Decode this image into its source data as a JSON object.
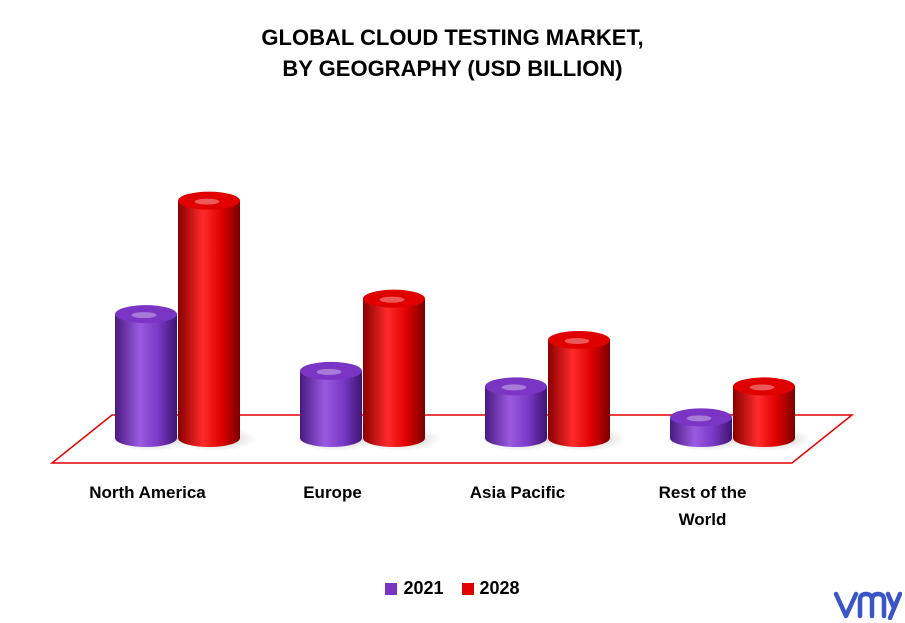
{
  "chart_data": {
    "type": "bar",
    "title_lines": [
      "GLOBAL CLOUD TESTING MARKET,",
      "BY GEOGRAPHY (USD BILLION)"
    ],
    "categories": [
      "North America",
      "Europe",
      "Asia Pacific",
      "Rest of the World"
    ],
    "series": [
      {
        "name": "2021",
        "values": [
          2.4,
          1.3,
          1.0,
          0.4
        ],
        "color": "#7b35c4"
      },
      {
        "name": "2028",
        "values": [
          4.6,
          2.7,
          1.9,
          1.0
        ],
        "color": "#e00000"
      }
    ],
    "ylim": [
      0,
      5
    ],
    "grid": false,
    "legend_position": "bottom"
  },
  "logo": {
    "icon": "vmr-logo-icon",
    "color": "#3a55c8"
  }
}
